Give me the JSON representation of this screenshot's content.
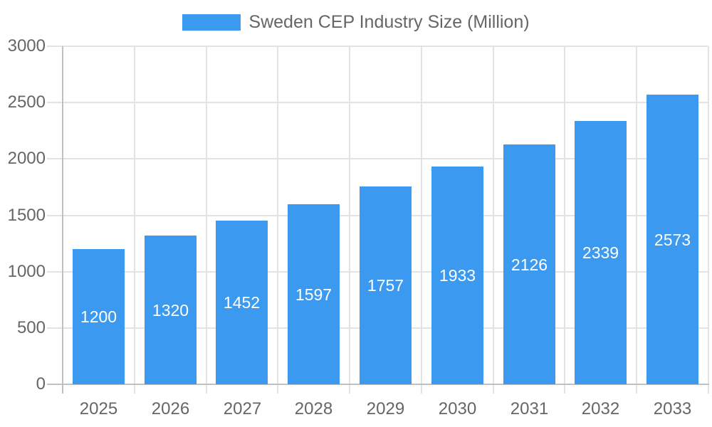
{
  "chart_data": {
    "type": "bar",
    "title": "Sweden CEP Industry Size (Million)",
    "legend_label": "Sweden CEP Industry Size (Million)",
    "legend_position": "top",
    "categories": [
      "2025",
      "2026",
      "2027",
      "2028",
      "2029",
      "2030",
      "2031",
      "2032",
      "2033"
    ],
    "values": [
      1200,
      1320,
      1452,
      1597,
      1757,
      1933,
      2126,
      2339,
      2573
    ],
    "xlabel": "",
    "ylabel": "",
    "ylim": [
      0,
      3000
    ],
    "yticks": [
      0,
      500,
      1000,
      1500,
      2000,
      2500,
      3000
    ],
    "grid": true,
    "value_labels": "inside-center",
    "colors": {
      "bar": "#3b99f0",
      "value_label_text": "#ffffff",
      "axis_text": "#666666",
      "grid_line": "#e3e3e3",
      "zero_line": "#c0c0c0",
      "background": "#ffffff"
    }
  }
}
